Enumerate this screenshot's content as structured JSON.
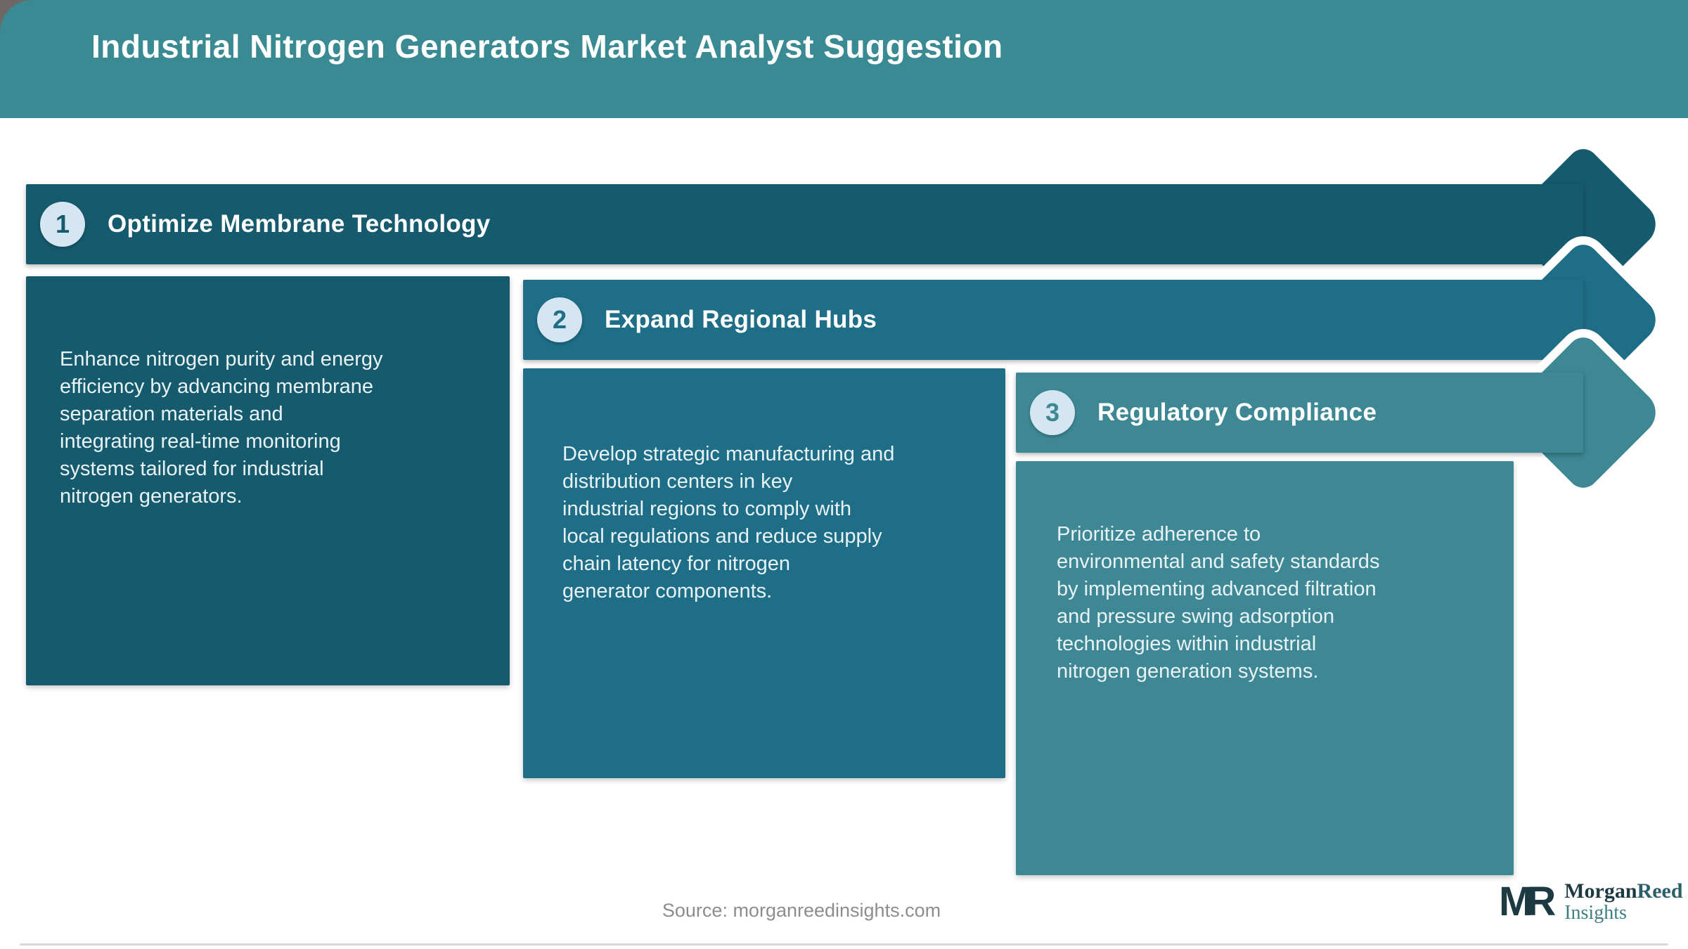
{
  "header": {
    "title": "Industrial Nitrogen Generators Market Analyst Suggestion"
  },
  "steps": [
    {
      "number": "1",
      "title": "Optimize Membrane Technology",
      "description": "Enhance nitrogen purity and energy\nefficiency by advancing membrane\nseparation materials and\nintegrating real-time monitoring\nsystems tailored for industrial\nnitrogen generators."
    },
    {
      "number": "2",
      "title": "Expand Regional Hubs",
      "description": "Develop strategic manufacturing and\ndistribution centers in key\nindustrial regions to comply with\nlocal regulations and reduce supply\nchain latency for nitrogen\ngenerator components."
    },
    {
      "number": "3",
      "title": "Regulatory Compliance",
      "description": "Prioritize adherence to\nenvironmental and safety standards\nby implementing advanced filtration\nand pressure swing adsorption\ntechnologies within industrial\nnitrogen generation systems."
    }
  ],
  "footer": {
    "source": "Source: morganreedinsights.com",
    "logo": {
      "monogram": "MR",
      "name_primary": "Morgan",
      "name_secondary": "Reed",
      "tagline": "Insights"
    }
  },
  "colors": {
    "header_bg": "#398a93",
    "step1": "#165a6d",
    "step2": "#1f6e87",
    "step3": "#3d8894",
    "badge_bg": "#d5e6f3",
    "body_text": "#e9f2f4",
    "source_text": "#8d8d8d",
    "logo_dark": "#1d3a43",
    "logo_teal": "#3f7f82"
  }
}
